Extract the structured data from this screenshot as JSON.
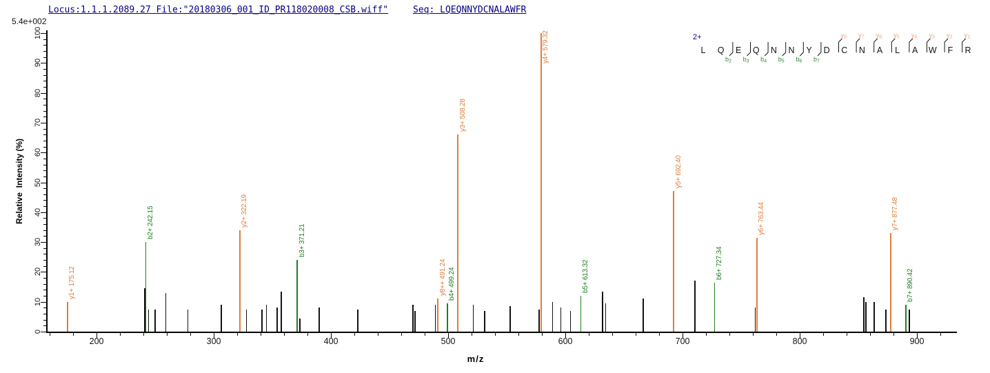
{
  "header": {
    "locus_file": "Locus:1.1.1.2089.27 File:\"20180306_001_ID_PR118020008_CSB.wiff\"",
    "seq": "Seq: LQEQNNYDCNALAWFR"
  },
  "axes": {
    "max_intensity_label": "5.4e+002",
    "ylabel": "Relative  Intensity (%)",
    "xlabel": "m/z"
  },
  "sequence_panel": {
    "charge": "2+",
    "residues": [
      "L",
      "Q",
      "E",
      "Q",
      "N",
      "N",
      "Y",
      "D",
      "C",
      "N",
      "A",
      "L",
      "A",
      "W",
      "F",
      "R"
    ],
    "b_ions": [
      "b2",
      "b3",
      "b4",
      "b5",
      "b6",
      "b7"
    ],
    "y_ions": [
      "y8",
      "y7",
      "y6",
      "y5",
      "y4",
      "y3",
      "y2",
      "y1"
    ]
  },
  "colors": {
    "header_text": "#000080",
    "y_ion": "#dd7e3c",
    "b_ion": "#1e7d1e",
    "unassigned_peak": "#111111",
    "seq_y_label": "#f2a173",
    "seq_b_label": "#2e8b2e",
    "axis": "#000000"
  },
  "chart_data": {
    "type": "bar",
    "subtype": "ms2-stick-spectrum",
    "title": "",
    "xlabel": "m/z",
    "ylabel": "Relative  Intensity (%)",
    "xlim": [
      157.6,
      932.4
    ],
    "ylim": [
      0,
      100
    ],
    "x_major_ticks": [
      200,
      300,
      400,
      500,
      600,
      700,
      800,
      900
    ],
    "x_minor_step": 20,
    "y_major_ticks": [
      0,
      10,
      20,
      30,
      40,
      50,
      60,
      70,
      80,
      90,
      100
    ],
    "y_minor_step": 2,
    "grid": false,
    "legend": "none",
    "base_peak_intensity": "5.4e+002",
    "peaks": [
      {
        "mz": 175.12,
        "intensity_pct": 10,
        "series": "y-ion",
        "label": "y1+ 175.12"
      },
      {
        "mz": 241.0,
        "intensity_pct": 14.5,
        "series": "unassigned"
      },
      {
        "mz": 242.15,
        "intensity_pct": 30,
        "series": "b-ion",
        "label": "b2+ 242.15"
      },
      {
        "mz": 244.5,
        "intensity_pct": 7.5,
        "series": "unassigned"
      },
      {
        "mz": 250.0,
        "intensity_pct": 7.5,
        "series": "unassigned"
      },
      {
        "mz": 259.0,
        "intensity_pct": 13,
        "series": "unassigned"
      },
      {
        "mz": 278.0,
        "intensity_pct": 7.5,
        "series": "unassigned"
      },
      {
        "mz": 306.5,
        "intensity_pct": 9,
        "series": "unassigned"
      },
      {
        "mz": 322.19,
        "intensity_pct": 34,
        "series": "y-ion",
        "label": "y2+ 322.19"
      },
      {
        "mz": 328.0,
        "intensity_pct": 7.5,
        "series": "unassigned"
      },
      {
        "mz": 341.0,
        "intensity_pct": 7.5,
        "series": "unassigned"
      },
      {
        "mz": 345.0,
        "intensity_pct": 9,
        "series": "unassigned"
      },
      {
        "mz": 354.0,
        "intensity_pct": 8,
        "series": "unassigned"
      },
      {
        "mz": 357.5,
        "intensity_pct": 13.5,
        "series": "unassigned"
      },
      {
        "mz": 371.21,
        "intensity_pct": 24,
        "series": "b-ion",
        "label": "b3+ 371.21"
      },
      {
        "mz": 373.5,
        "intensity_pct": 4.5,
        "series": "unassigned"
      },
      {
        "mz": 390.0,
        "intensity_pct": 8,
        "series": "unassigned"
      },
      {
        "mz": 423.0,
        "intensity_pct": 7.5,
        "series": "unassigned"
      },
      {
        "mz": 470.0,
        "intensity_pct": 9,
        "series": "unassigned"
      },
      {
        "mz": 471.8,
        "intensity_pct": 7,
        "series": "unassigned"
      },
      {
        "mz": 489.0,
        "intensity_pct": 9,
        "series": "unassigned"
      },
      {
        "mz": 491.24,
        "intensity_pct": 11,
        "series": "y-ion",
        "label": "y8++ 491.24"
      },
      {
        "mz": 499.24,
        "intensity_pct": 9.5,
        "series": "b-ion",
        "label": "b4+ 499.24"
      },
      {
        "mz": 508.28,
        "intensity_pct": 66,
        "series": "y-ion",
        "label": "y3+ 508.28"
      },
      {
        "mz": 521.5,
        "intensity_pct": 9,
        "series": "unassigned"
      },
      {
        "mz": 531.0,
        "intensity_pct": 7,
        "series": "unassigned"
      },
      {
        "mz": 553.0,
        "intensity_pct": 8.5,
        "series": "unassigned"
      },
      {
        "mz": 577.5,
        "intensity_pct": 7.5,
        "series": "unassigned"
      },
      {
        "mz": 579.32,
        "intensity_pct": 100,
        "series": "y-ion",
        "label": "y4+ 579.32"
      },
      {
        "mz": 589.0,
        "intensity_pct": 10,
        "series": "unassigned"
      },
      {
        "mz": 596.0,
        "intensity_pct": 8,
        "series": "unassigned"
      },
      {
        "mz": 604.5,
        "intensity_pct": 7,
        "series": "unassigned"
      },
      {
        "mz": 613.32,
        "intensity_pct": 12,
        "series": "b-ion",
        "label": "b5+ 613.32"
      },
      {
        "mz": 631.8,
        "intensity_pct": 13.5,
        "series": "unassigned"
      },
      {
        "mz": 634.5,
        "intensity_pct": 9.5,
        "series": "unassigned"
      },
      {
        "mz": 666.5,
        "intensity_pct": 11,
        "series": "unassigned"
      },
      {
        "mz": 692.4,
        "intensity_pct": 47,
        "series": "y-ion",
        "label": "y5+ 692.40"
      },
      {
        "mz": 710.5,
        "intensity_pct": 17,
        "series": "unassigned"
      },
      {
        "mz": 727.34,
        "intensity_pct": 16.5,
        "series": "b-ion",
        "label": "b6+ 727.34"
      },
      {
        "mz": 762.0,
        "intensity_pct": 8,
        "series": "unassigned"
      },
      {
        "mz": 763.44,
        "intensity_pct": 31.5,
        "series": "y-ion",
        "label": "y6+ 763.44"
      },
      {
        "mz": 854.7,
        "intensity_pct": 11.5,
        "series": "unassigned"
      },
      {
        "mz": 856.5,
        "intensity_pct": 10,
        "series": "unassigned"
      },
      {
        "mz": 863.6,
        "intensity_pct": 10,
        "series": "unassigned"
      },
      {
        "mz": 873.5,
        "intensity_pct": 7.5,
        "series": "unassigned"
      },
      {
        "mz": 877.48,
        "intensity_pct": 33,
        "series": "y-ion",
        "label": "y7+ 877.48"
      },
      {
        "mz": 890.42,
        "intensity_pct": 9,
        "series": "b-ion",
        "label": "b7+ 890.42"
      },
      {
        "mz": 893.5,
        "intensity_pct": 7.5,
        "series": "unassigned"
      }
    ]
  }
}
